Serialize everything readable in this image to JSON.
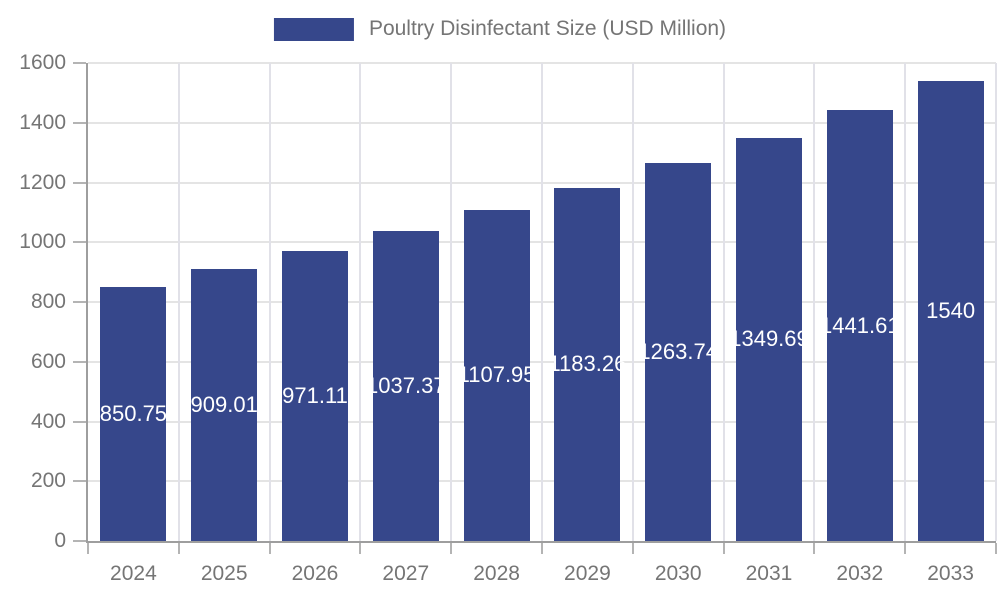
{
  "legend": {
    "label": "Poultry Disinfectant Size (USD Million)"
  },
  "chart_data": {
    "type": "bar",
    "title": "Poultry Disinfectant Size (USD Million)",
    "categories": [
      "2024",
      "2025",
      "2026",
      "2027",
      "2028",
      "2029",
      "2030",
      "2031",
      "2032",
      "2033"
    ],
    "values": [
      850.75,
      909.01,
      971.11,
      1037.37,
      1107.95,
      1183.26,
      1263.74,
      1349.69,
      1441.61,
      1540
    ],
    "bar_labels": [
      "850.75",
      "909.01",
      "971.11",
      "1037.37",
      "1107.95",
      "1183.26",
      "1263.74",
      "1349.69",
      "1441.61",
      "1540"
    ],
    "xlabel": "",
    "ylabel": "",
    "ylim": [
      0,
      1600
    ],
    "y_ticks": [
      0,
      200,
      400,
      600,
      800,
      1000,
      1200,
      1400,
      1600
    ],
    "grid": true,
    "legend_position": "top-center",
    "colors": {
      "bar": "#36478B",
      "grid_horizontal": "#e4e4e4",
      "grid_vertical": "#e1e1e8",
      "axis": "#9e9e9e",
      "tick": "#b4b4b4",
      "text": "#757575",
      "bar_label": "#ffffff",
      "background": "#ffffff"
    }
  }
}
